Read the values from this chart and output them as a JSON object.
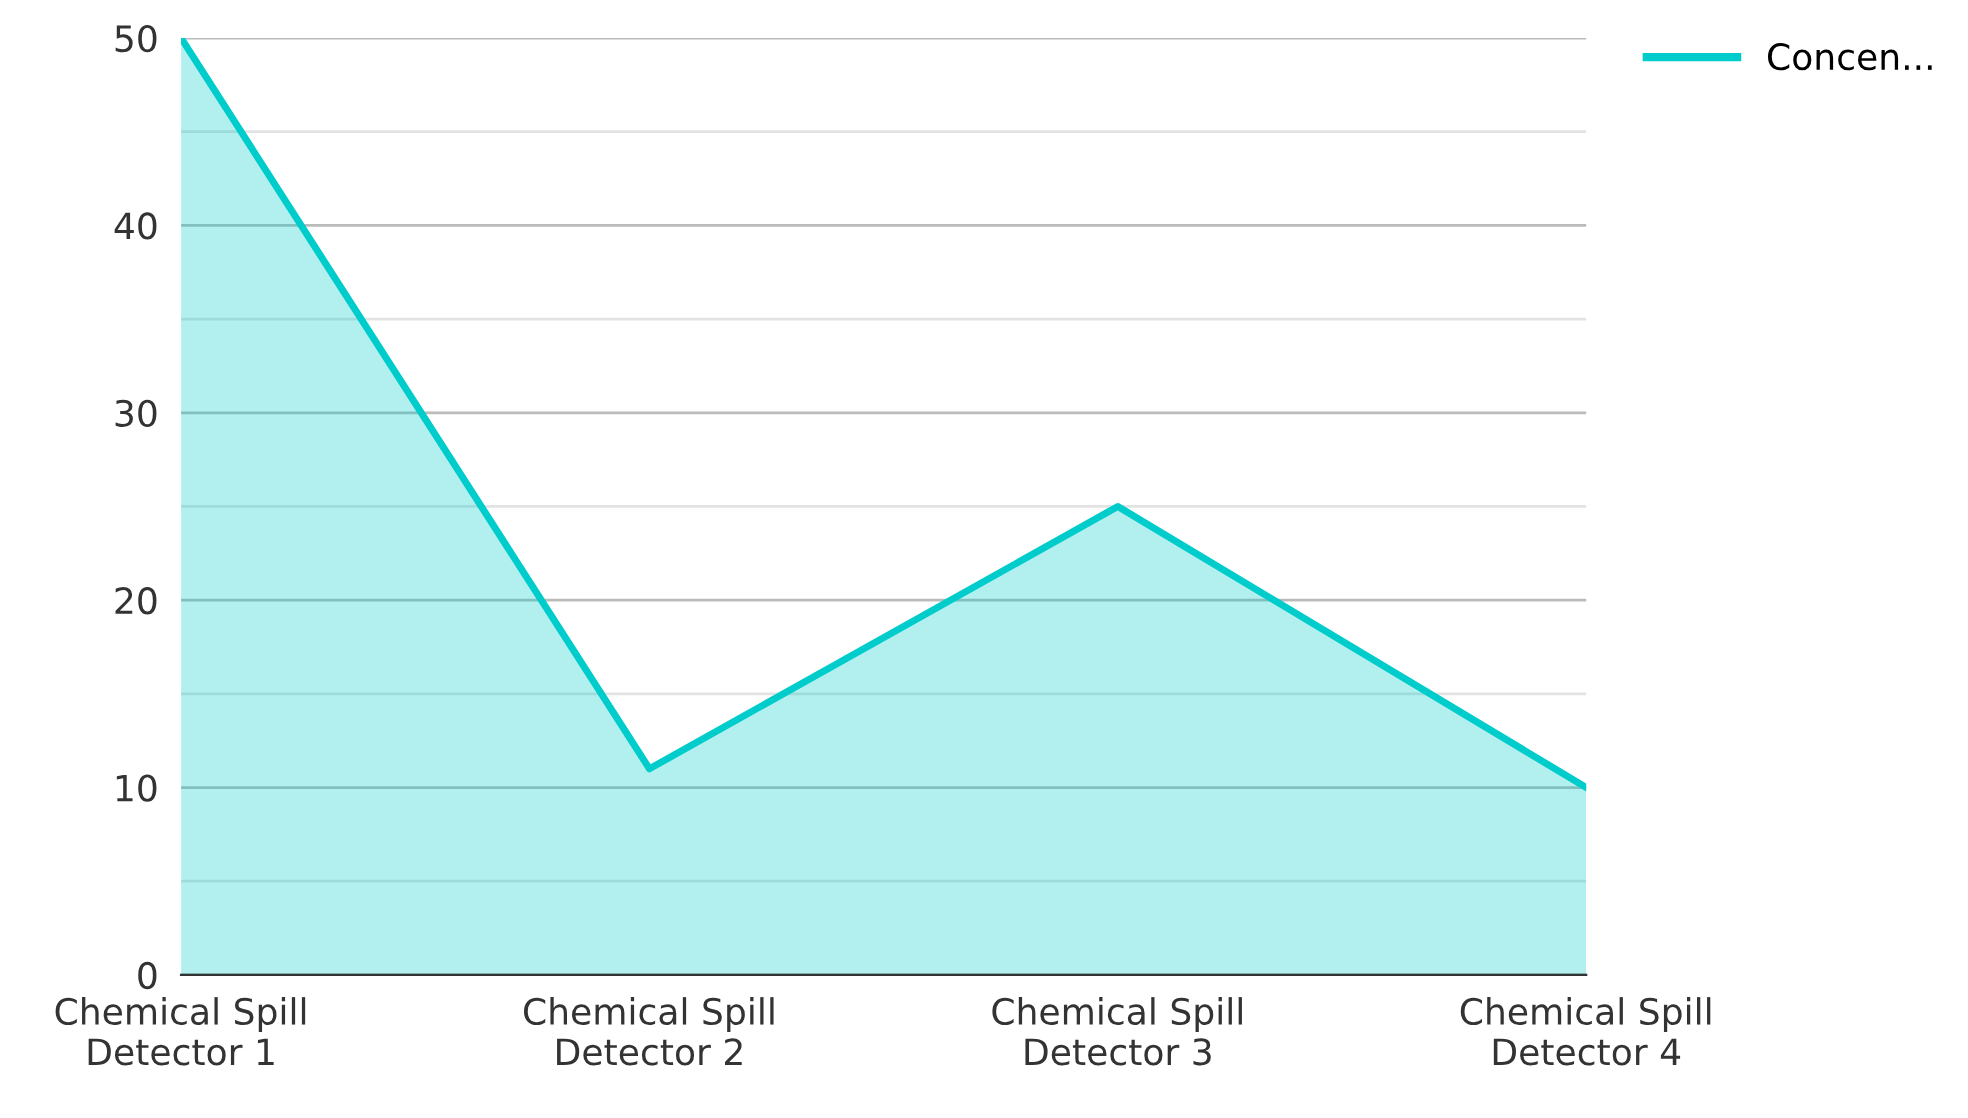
{
  "chart_data": {
    "type": "area",
    "categories": [
      "Chemical Spill\nDetector 1",
      "Chemical Spill\nDetector 2",
      "Chemical Spill\nDetector 3",
      "Chemical Spill\nDetector 4"
    ],
    "series": [
      {
        "name": "Concen...",
        "color": "#00cccc",
        "values": [
          50,
          11,
          25,
          10
        ]
      }
    ],
    "ylim": [
      0,
      50
    ],
    "yticks": [
      0,
      {
        "value": 5,
        "label": null
      },
      10,
      {
        "value": 15,
        "label": null
      },
      20,
      {
        "value": 25,
        "label": null
      },
      30,
      {
        "value": 35,
        "label": null
      },
      40,
      {
        "value": 45,
        "label": null
      },
      50
    ],
    "grid": "y",
    "legend": "top right"
  }
}
